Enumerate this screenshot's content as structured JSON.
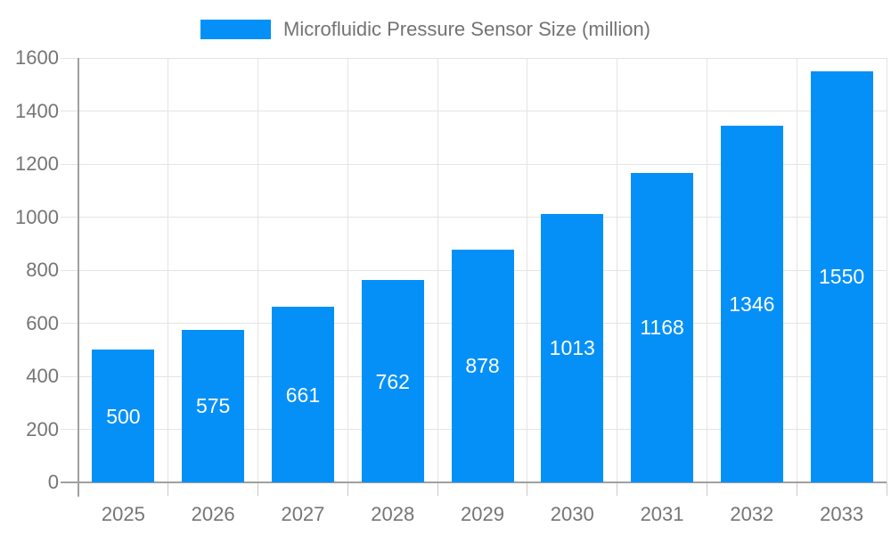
{
  "chart_data": {
    "type": "bar",
    "title": "Microfluidic Pressure Sensor Size (million)",
    "categories": [
      "2025",
      "2026",
      "2027",
      "2028",
      "2029",
      "2030",
      "2031",
      "2032",
      "2033"
    ],
    "values": [
      500,
      575,
      661,
      762,
      878,
      1013,
      1168,
      1346,
      1550
    ],
    "xlabel": "",
    "ylabel": "",
    "ylim": [
      0,
      1600
    ],
    "yticks": [
      0,
      200,
      400,
      600,
      800,
      1000,
      1200,
      1400,
      1600
    ],
    "grid": true,
    "legend_position": "top-center",
    "value_label_position": "inside-center",
    "colors": {
      "bar": "#0590f8",
      "bar_label": "#ffffff",
      "axis_text": "#757575",
      "legend_text": "#737373",
      "grid": "#e4e4e4",
      "axis_line": "#a0a0a0",
      "tick": "#c9c9c9",
      "background": "#ffffff"
    }
  }
}
